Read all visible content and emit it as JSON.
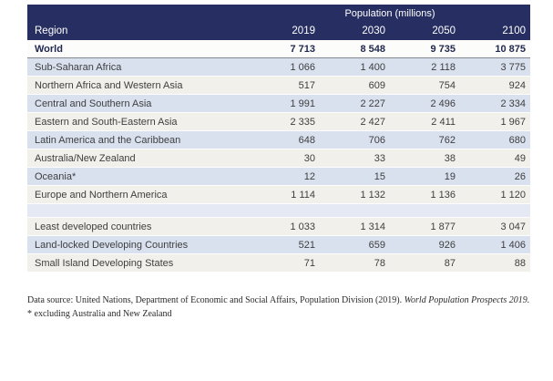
{
  "table": {
    "header": {
      "group_title": "Population (millions)",
      "region_label": "Region",
      "years": [
        "2019",
        "2030",
        "2050",
        "2100"
      ]
    },
    "world": {
      "region": "World",
      "values": [
        "7 713",
        "8 548",
        "9 735",
        "10 875"
      ]
    },
    "regions": [
      {
        "region": "Sub-Saharan Africa",
        "values": [
          "1 066",
          "1 400",
          "2 118",
          "3 775"
        ]
      },
      {
        "region": "Northern Africa and Western Asia",
        "values": [
          "517",
          "609",
          "754",
          "924"
        ]
      },
      {
        "region": "Central and Southern Asia",
        "values": [
          "1 991",
          "2 227",
          "2 496",
          "2 334"
        ]
      },
      {
        "region": "Eastern and South-Eastern Asia",
        "values": [
          "2 335",
          "2 427",
          "2 411",
          "1 967"
        ]
      },
      {
        "region": "Latin America and the Caribbean",
        "values": [
          "648",
          "706",
          "762",
          "680"
        ]
      },
      {
        "region": "Australia/New Zealand",
        "values": [
          "30",
          "33",
          "38",
          "49"
        ]
      },
      {
        "region": "Oceania*",
        "values": [
          "12",
          "15",
          "19",
          "26"
        ]
      },
      {
        "region": "Europe and Northern America",
        "values": [
          "1 114",
          "1 132",
          "1 136",
          "1 120"
        ]
      }
    ],
    "aggregates": [
      {
        "region": "Least developed countries",
        "values": [
          "1 033",
          "1 314",
          "1 877",
          "3 047"
        ]
      },
      {
        "region": "Land-locked Developing Countries",
        "values": [
          "521",
          "659",
          "926",
          "1 406"
        ]
      },
      {
        "region": "Small Island Developing States",
        "values": [
          "71",
          "78",
          "87",
          "88"
        ]
      }
    ]
  },
  "footer": {
    "source_prefix": "Data source: United Nations, Department of Economic and Social Affairs, Population Division (2019). ",
    "source_title": "World Population Prospects 2019.",
    "note": "* excluding Australia and New Zealand"
  },
  "colors": {
    "header_bg": "#272f62",
    "row_blue": "#d9e1ef",
    "row_offwhite": "#f1f0eb",
    "spacer_blue": "#e4e9f3",
    "world_rule": "#83878f"
  },
  "chart_data": {
    "type": "table",
    "title": "Population (millions)",
    "columns": [
      "Region",
      "2019",
      "2030",
      "2050",
      "2100"
    ],
    "rows": [
      [
        "World",
        7713,
        8548,
        9735,
        10875
      ],
      [
        "Sub-Saharan Africa",
        1066,
        1400,
        2118,
        3775
      ],
      [
        "Northern Africa and Western Asia",
        517,
        609,
        754,
        924
      ],
      [
        "Central and Southern Asia",
        1991,
        2227,
        2496,
        2334
      ],
      [
        "Eastern and South-Eastern Asia",
        2335,
        2427,
        2411,
        1967
      ],
      [
        "Latin America and the Caribbean",
        648,
        706,
        762,
        680
      ],
      [
        "Australia/New Zealand",
        30,
        33,
        38,
        49
      ],
      [
        "Oceania*",
        12,
        15,
        19,
        26
      ],
      [
        "Europe and Northern America",
        1114,
        1132,
        1136,
        1120
      ],
      [
        "Least developed countries",
        1033,
        1314,
        1877,
        3047
      ],
      [
        "Land-locked Developing Countries",
        521,
        659,
        926,
        1406
      ],
      [
        "Small Island Developing States",
        71,
        78,
        87,
        88
      ]
    ],
    "source": "Data source: United Nations, Department of Economic and Social Affairs, Population Division (2019). World Population Prospects 2019.",
    "note": "* excluding Australia and New Zealand"
  }
}
